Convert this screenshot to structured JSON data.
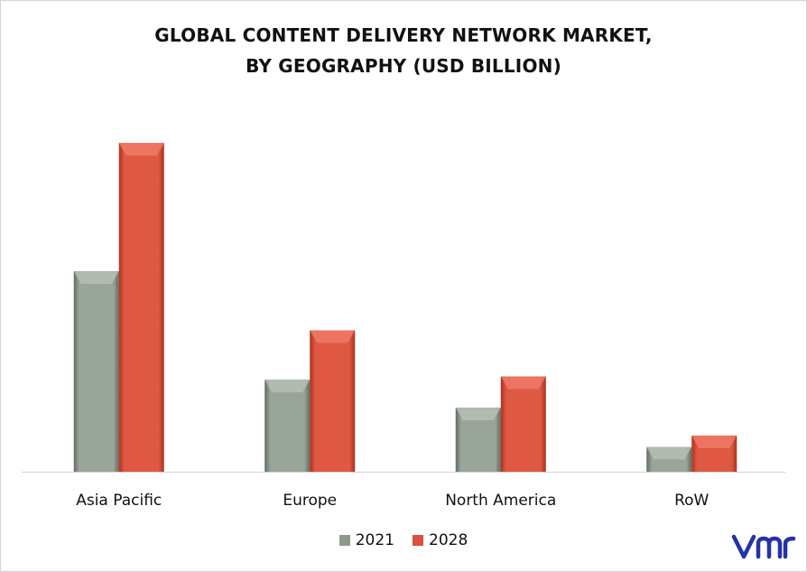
{
  "chart_data": {
    "type": "bar",
    "title_lines": [
      "GLOBAL CONTENT DELIVERY NETWORK MARKET,",
      "BY GEOGRAPHY (USD BILLION)"
    ],
    "categories": [
      "Asia Pacific",
      "Europe",
      "North America",
      "RoW"
    ],
    "series": [
      {
        "name": "2021",
        "values": [
          6.1,
          2.8,
          1.95,
          0.75
        ],
        "color": "#8f9a8f"
      },
      {
        "name": "2028",
        "values": [
          10.0,
          4.3,
          2.9,
          1.1
        ],
        "color": "#d9503c"
      }
    ],
    "ylim": [
      0,
      10.5
    ],
    "grid": false,
    "legend": "bottom"
  },
  "brand": {
    "logo": "vmr-logo",
    "color": "#2433a8"
  }
}
